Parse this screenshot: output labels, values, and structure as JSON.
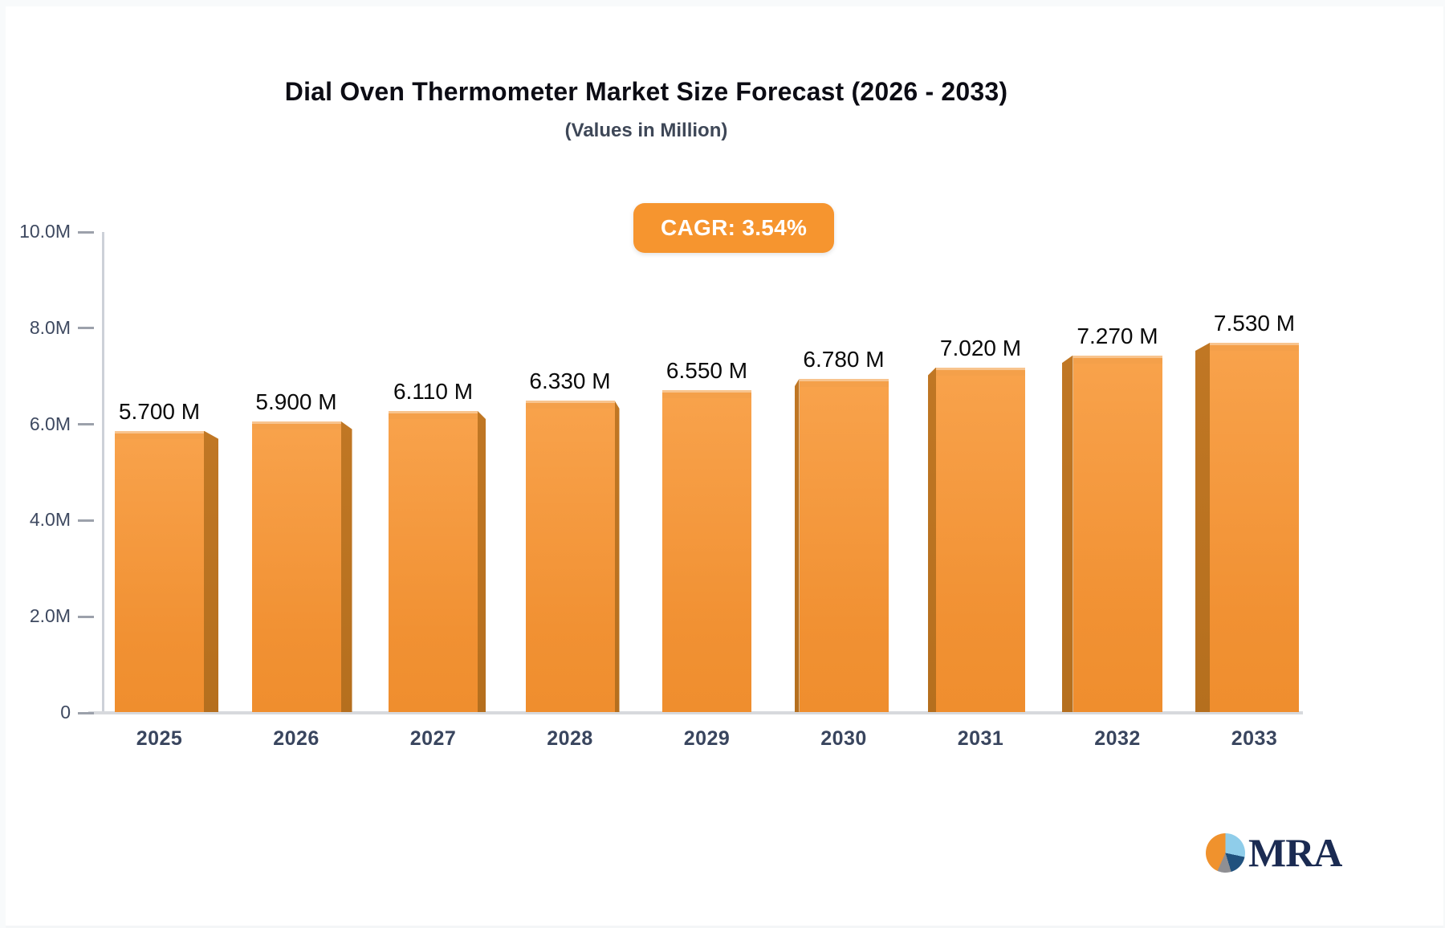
{
  "header": {
    "title": "Dial Oven Thermometer Market Size Forecast (2026 - 2033)",
    "subtitle": "(Values in Million)"
  },
  "badge": {
    "label": "CAGR: 3.54%",
    "bg_color": "#F6952F",
    "text_color": "#FFFFFF"
  },
  "chart_data": {
    "type": "bar",
    "style": "3d-perspective-center-vanishing-point",
    "title": "Dial Oven Thermometer Market Size Forecast (2026 - 2033)",
    "subtitle": "(Values in Million)",
    "categories": [
      "2025",
      "2026",
      "2027",
      "2028",
      "2029",
      "2030",
      "2031",
      "2032",
      "2033"
    ],
    "values": [
      5.7,
      5.9,
      6.11,
      6.33,
      6.55,
      6.78,
      7.02,
      7.27,
      7.53
    ],
    "value_labels": [
      "5.700 M",
      "5.900 M",
      "6.110 M",
      "6.330 M",
      "6.550 M",
      "6.780 M",
      "7.020 M",
      "7.270 M",
      "7.530 M"
    ],
    "unit": "Million",
    "xlabel": "",
    "ylabel": "",
    "ylim": [
      0,
      10
    ],
    "yticks": [
      0,
      2,
      4,
      6,
      8,
      10
    ],
    "ytick_labels": [
      "0",
      "2.0M",
      "4.0M",
      "6.0M",
      "8.0M",
      "10.0M"
    ],
    "grid": false,
    "legend_position": "none",
    "annotations": [
      "CAGR: 3.54%"
    ],
    "bar_color": "#F49A40",
    "bar_side_color": "#BA7421",
    "axis_color": "#CDD1D8",
    "tick_text_color": "#3E4960",
    "value_label_color": "#0A0A0A"
  },
  "logo": {
    "text": "MRA",
    "icon": "pie-chart-icon",
    "text_color": "#1B2B52",
    "pie_colors": [
      "#F0922D",
      "#8FCDEA",
      "#20517E",
      "#8F8F93"
    ]
  }
}
